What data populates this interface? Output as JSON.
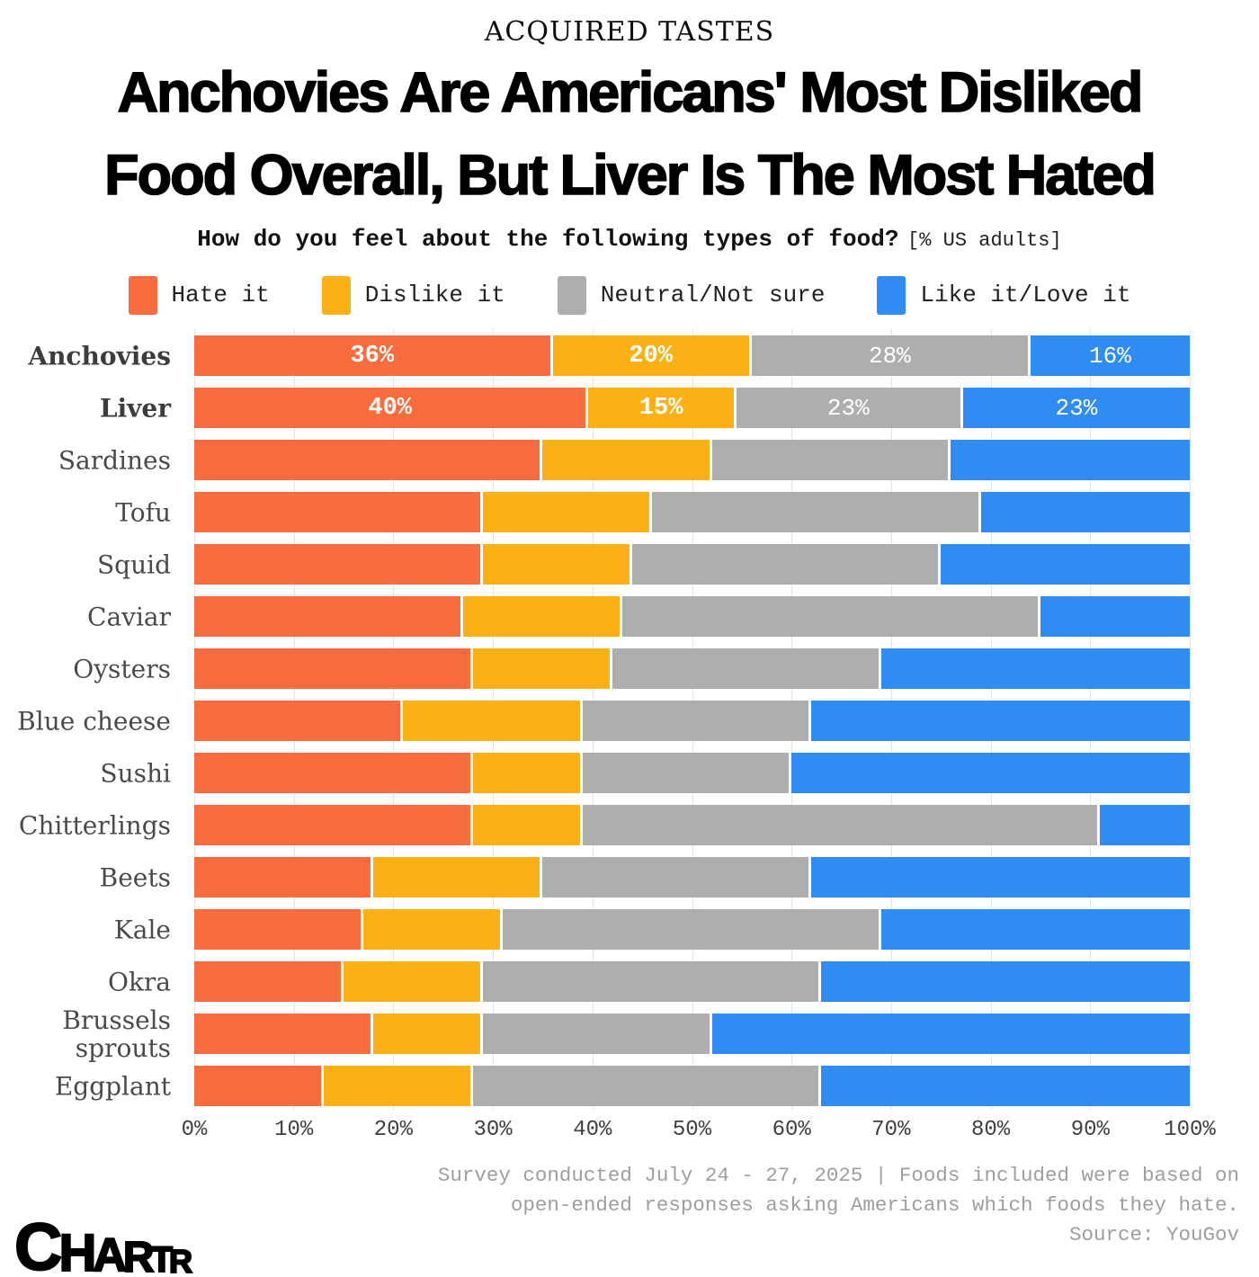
{
  "header": {
    "kicker": "ACQUIRED TASTES",
    "title_line1": "Anchovies Are Americans' Most Disliked",
    "title_line2": "Food Overall, But Liver Is The Most Hated",
    "subtitle_question": "How do you feel about the following types of food?",
    "subtitle_note": "[% US adults]"
  },
  "legend": {
    "items": [
      {
        "label": "Hate it",
        "color": "#F96C3D"
      },
      {
        "label": "Dislike it",
        "color": "#FBB116"
      },
      {
        "label": "Neutral/Not sure",
        "color": "#AEAEAE"
      },
      {
        "label": "Like it/Love it",
        "color": "#2E8CF2"
      }
    ]
  },
  "chart_data": {
    "type": "bar",
    "stacked": true,
    "orientation": "horizontal",
    "title": "Anchovies Are Americans' Most Disliked Food Overall, But Liver Is The Most Hated",
    "subtitle": "How do you feel about the following types of food? [% US adults]",
    "xlabel": "",
    "ylabel": "",
    "xlim": [
      0,
      100
    ],
    "grid": true,
    "legend_position": "top",
    "x_ticks": [
      "0%",
      "10%",
      "20%",
      "30%",
      "40%",
      "50%",
      "60%",
      "70%",
      "80%",
      "90%",
      "100%"
    ],
    "categories": [
      "Anchovies",
      "Liver",
      "Sardines",
      "Tofu",
      "Squid",
      "Caviar",
      "Oysters",
      "Blue cheese",
      "Sushi",
      "Chitterlings",
      "Beets",
      "Kale",
      "Okra",
      "Brussels sprouts",
      "Eggplant"
    ],
    "bold_categories": [
      "Anchovies",
      "Liver"
    ],
    "value_label_rows": [
      0,
      1
    ],
    "series": [
      {
        "name": "Hate it",
        "color": "#F96C3D",
        "values": [
          36,
          40,
          35,
          29,
          29,
          27,
          28,
          21,
          28,
          28,
          18,
          17,
          15,
          18,
          13
        ]
      },
      {
        "name": "Dislike it",
        "color": "#FBB116",
        "values": [
          20,
          15,
          17,
          17,
          15,
          16,
          14,
          18,
          11,
          11,
          17,
          14,
          14,
          11,
          15
        ]
      },
      {
        "name": "Neutral/Not sure",
        "color": "#AEAEAE",
        "values": [
          28,
          23,
          24,
          33,
          31,
          42,
          27,
          23,
          21,
          52,
          27,
          38,
          34,
          23,
          35
        ]
      },
      {
        "name": "Like it/Love it",
        "color": "#2E8CF2",
        "values": [
          16,
          23,
          24,
          21,
          25,
          15,
          31,
          38,
          40,
          9,
          38,
          31,
          37,
          48,
          37
        ]
      }
    ]
  },
  "footer": {
    "note_line1": "Survey conducted July 24 - 27, 2025 | Foods included were based on",
    "note_line2": "open-ended responses asking Americans which foods they hate.",
    "source": "Source: YouGov"
  },
  "logo": {
    "text": "CHARTR",
    "letters": [
      "C",
      "H",
      "A",
      "R",
      "T",
      "R"
    ]
  }
}
